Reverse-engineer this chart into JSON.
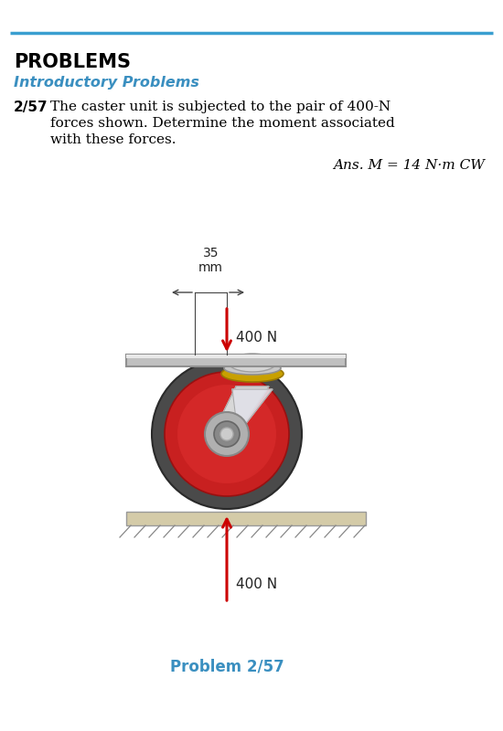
{
  "title_line": "PROBLEMS",
  "subtitle_line": "Introductory Problems",
  "problem_num": "2/57",
  "problem_text_line1": "The caster unit is subjected to the pair of 400-N",
  "problem_text_line2": "forces shown. Determine the moment associated",
  "problem_text_line3": "with these forces.",
  "answer_text": "Ans. M = 14 N·m CW",
  "force_label": "400 N",
  "problem_label": "Problem 2/57",
  "header_line_color": "#3a9fd0",
  "title_color": "#000000",
  "subtitle_color": "#3a8fc0",
  "problem_num_color": "#000000",
  "arrow_color": "#cc0000",
  "dim_line_color": "#444444",
  "background_color": "#ffffff",
  "fig_width": 5.5,
  "fig_height": 8.0
}
